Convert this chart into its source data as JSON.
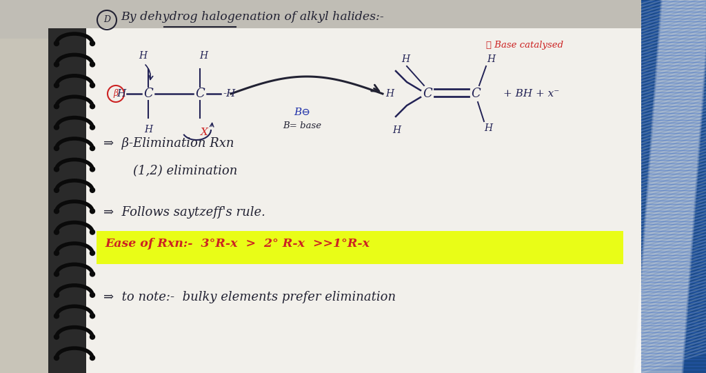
{
  "bg_color": "#c8c4b8",
  "paper_color": "#f0eeea",
  "spiral_color": "#111111",
  "title_text": "By dehydrog halogenation of alkyl halides:-",
  "d_label": "D",
  "note_text": "∴ Base catalysed",
  "reaction_note1": "⇒  β-Elimination Rxn",
  "reaction_note2": "    (1,2) elimination",
  "reaction_note3": "⇒  Follows saytzeff's rule.",
  "ease_text": "Ease of Rxn:-  3°R-x  >  2° R-x  >>1°R-x",
  "note_bottom": "⇒  to note:-  bulky elements prefer elimination",
  "highlight_color": "#e8ff00",
  "text_color_blue": "#2233aa",
  "text_color_ink": "#222255",
  "text_color_red": "#cc2222",
  "text_color_dark": "#222233",
  "right_fabric_color": "#2255aa",
  "figsize": [
    10.24,
    5.41
  ],
  "dpi": 100
}
